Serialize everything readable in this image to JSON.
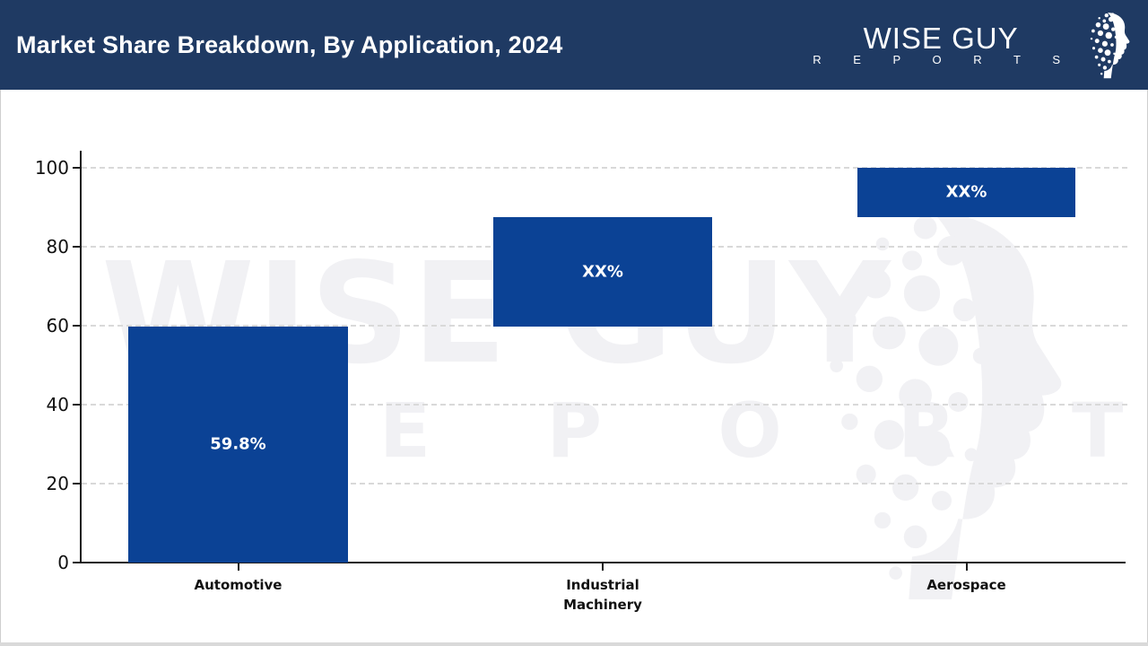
{
  "header": {
    "title": "Market Share Breakdown, By Application, 2024",
    "logo": {
      "line1": "WISE GUY",
      "line2": "R E P O R T S"
    }
  },
  "watermark": {
    "line1": "WISE GUY",
    "line2": "R E P O R T S"
  },
  "chart_data": {
    "type": "bar",
    "subtype": "stacked-waterfall-breakdown",
    "title": "Market Share Breakdown, By Application, 2024",
    "categories": [
      "Automotive",
      "Industrial Machinery",
      "Aerospace"
    ],
    "segments": [
      {
        "category": "Automotive",
        "start": 0,
        "end": 59.8,
        "label": "59.8%"
      },
      {
        "category": "Industrial Machinery",
        "start": 59.8,
        "end": 87.5,
        "label": "XX%"
      },
      {
        "category": "Aerospace",
        "start": 87.5,
        "end": 100,
        "label": "XX%"
      }
    ],
    "yticks": [
      0,
      20,
      40,
      60,
      80,
      100
    ],
    "ylim": [
      0,
      104
    ],
    "xlabel": "",
    "ylabel": "",
    "legend": "none",
    "grid": true,
    "gridline_style": "dashed",
    "bar_color": "#0b4295",
    "label_color": "#ffffff"
  },
  "colors": {
    "header_bg": "#1f3a63",
    "bar": "#0b4295",
    "axis": "#1c1c1c",
    "grid": "#d9d9d9",
    "watermark": "#f1f1f4",
    "card_border": "#cfcfcf",
    "footer_strip": "#d9d9d9"
  }
}
